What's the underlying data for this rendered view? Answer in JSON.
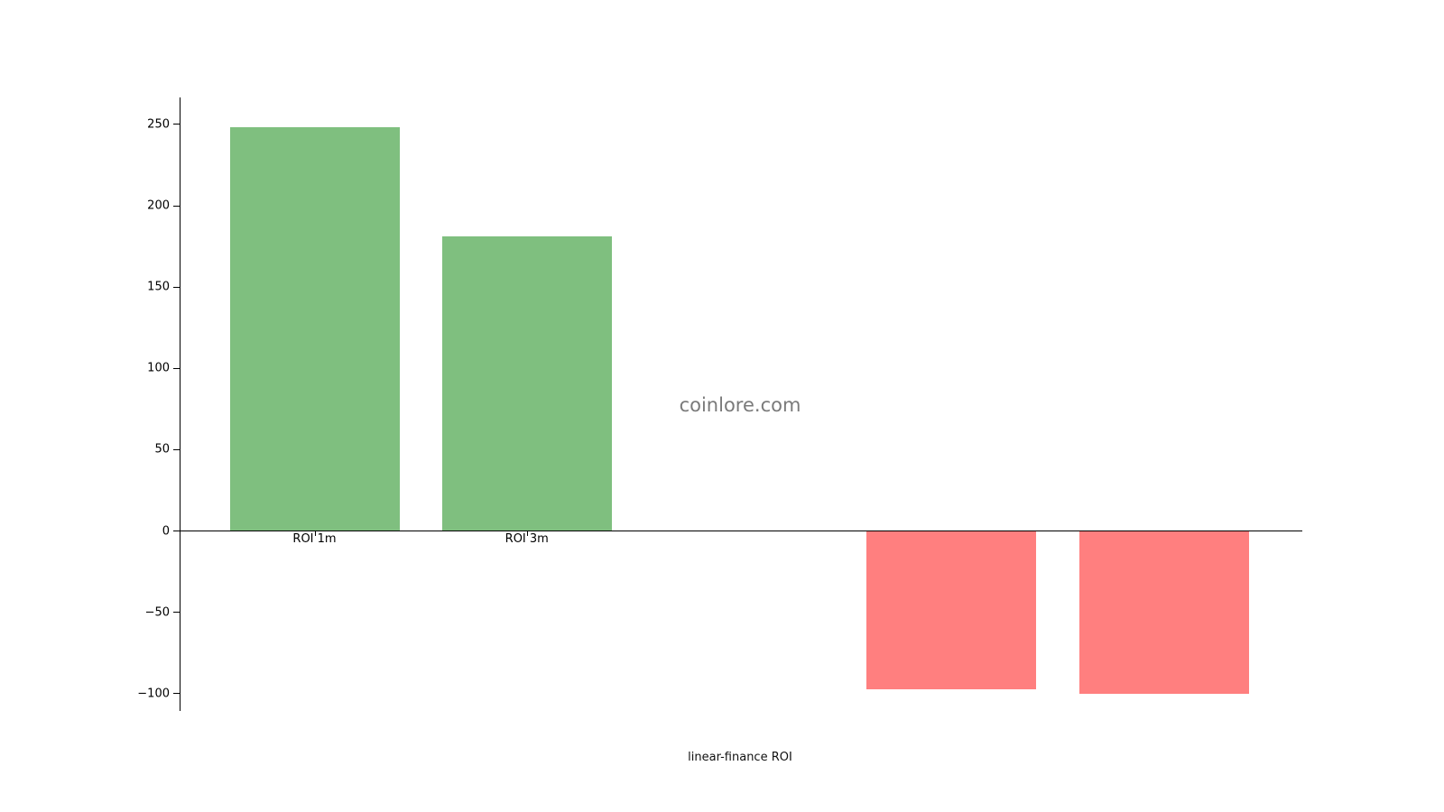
{
  "chart_data": {
    "type": "bar",
    "title": "linear-finance ROI",
    "watermark": "coinlore.com",
    "categories": [
      "ROI 1m",
      "ROI 3m",
      "",
      ""
    ],
    "values": [
      248,
      181,
      -97,
      -100
    ],
    "series": [
      {
        "name": "ROI",
        "values": [
          248,
          181,
          -97,
          -100
        ]
      }
    ],
    "bars": [
      {
        "label": "ROI 1m",
        "value": 248,
        "color": "#7fbf7f",
        "slot": 0
      },
      {
        "label": "ROI 3m",
        "value": 181,
        "color": "#7fbf7f",
        "slot": 1
      },
      {
        "label": "",
        "value": -97,
        "color": "#ff7f7f",
        "slot": 3
      },
      {
        "label": "",
        "value": -100,
        "color": "#ff7f7f",
        "slot": 4
      }
    ],
    "y_ticks": [
      {
        "label": "250",
        "value": 250
      },
      {
        "label": "200",
        "value": 200
      },
      {
        "label": "150",
        "value": 150
      },
      {
        "label": "100",
        "value": 100
      },
      {
        "label": "50",
        "value": 50
      },
      {
        "label": "0",
        "value": 0
      },
      {
        "label": "−50",
        "value": -50
      },
      {
        "label": "−100",
        "value": -100
      }
    ],
    "ylim": [
      -111,
      266
    ],
    "xlabel": "",
    "ylabel": "",
    "grid": false,
    "legend": null,
    "colors": {
      "positive": "#7fbf7f",
      "negative": "#ff7f7f",
      "axis": "#000000",
      "watermark_text": "#7a7a7a",
      "background": "#ffffff"
    }
  }
}
